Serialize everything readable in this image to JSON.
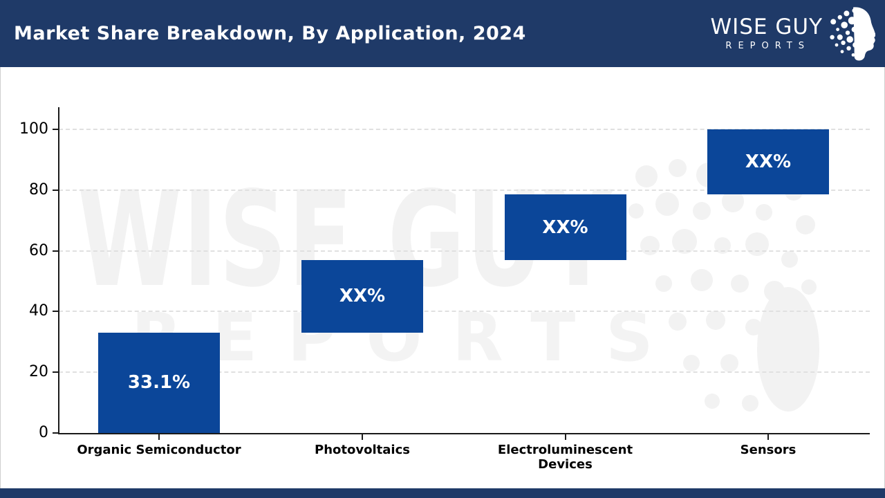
{
  "header": {
    "title": "Market Share Breakdown, By Application, 2024",
    "bg_color": "#1f3a68",
    "logo": {
      "line1": "WISE GUY",
      "line2": "REPORTS"
    }
  },
  "watermark": {
    "line1": "WISE GUY",
    "line2": "REPORTS"
  },
  "chart_data": {
    "type": "bar",
    "subtype": "waterfall",
    "title": "Market Share Breakdown, By Application, 2024",
    "categories": [
      "Organic Semiconductor",
      "Photovoltaics",
      "Electroluminescent Devices",
      "Sensors"
    ],
    "segments": [
      {
        "category": "Organic Semiconductor",
        "start": 0,
        "end": 33.1,
        "label": "33.1%"
      },
      {
        "category": "Photovoltaics",
        "start": 33.1,
        "end": 56.9,
        "label": "XX%"
      },
      {
        "category": "Electroluminescent Devices",
        "start": 56.9,
        "end": 78.5,
        "label": "XX%"
      },
      {
        "category": "Sensors",
        "start": 78.5,
        "end": 100,
        "label": "XX%"
      }
    ],
    "y_ticks": [
      0,
      20,
      40,
      60,
      80,
      100
    ],
    "ylim": [
      0,
      105
    ],
    "xlabel": "",
    "ylabel": "",
    "grid": true,
    "legend": false,
    "bar_color": "#0b4699",
    "grid_color": "#e0e0e0"
  }
}
